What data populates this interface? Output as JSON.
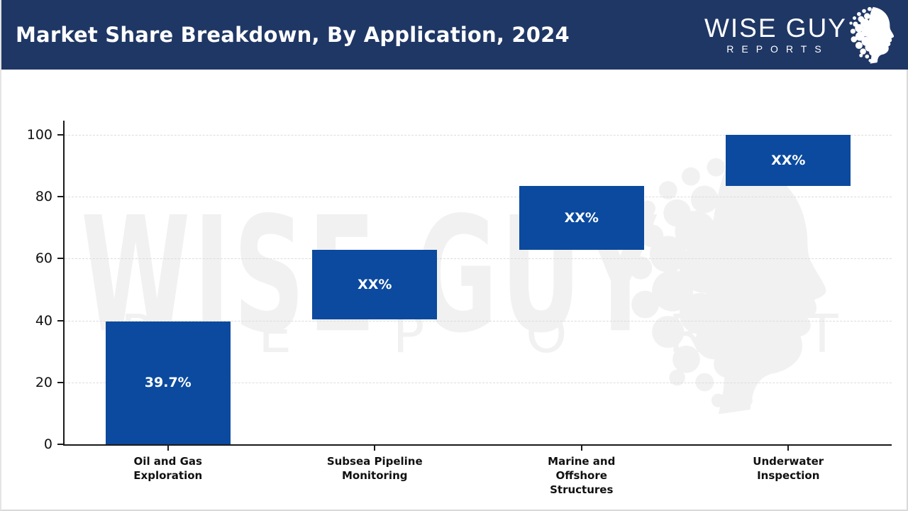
{
  "header": {
    "title": "Market Share Breakdown, By Application, 2024",
    "logo": {
      "line1": "WISE GUY",
      "line2": "REPORTS"
    }
  },
  "watermark": {
    "line1": "WISE GUY",
    "line2": "REPORTS"
  },
  "colors": {
    "header_bg": "#1f3765",
    "bar": "#0b4a9e",
    "bar_label": "#ffffff",
    "grid": "#dcdcdc",
    "axis": "#1a1a1a",
    "watermark": "#f1f1f1",
    "page_bg": "#ffffff"
  },
  "chart_data": {
    "type": "bar",
    "subtype": "floating-waterfall",
    "title": "Market Share Breakdown, By Application, 2024",
    "categories": [
      [
        "Oil and Gas",
        "Exploration"
      ],
      [
        "Subsea Pipeline",
        "Monitoring"
      ],
      [
        "Marine and",
        "Offshore",
        "Structures"
      ],
      [
        "Underwater",
        "Inspection"
      ]
    ],
    "bars": [
      {
        "start": 0,
        "end": 39.7,
        "label": "39.7%"
      },
      {
        "start": 40.3,
        "end": 62.8,
        "label": "XX%"
      },
      {
        "start": 62.9,
        "end": 83.5,
        "label": "XX%"
      },
      {
        "start": 83.6,
        "end": 100,
        "label": "XX%"
      }
    ],
    "ylim": [
      0,
      100
    ],
    "yticks": [
      0,
      20,
      40,
      60,
      80,
      100
    ],
    "grid": true,
    "grid_style": "dashed",
    "legend": false
  }
}
